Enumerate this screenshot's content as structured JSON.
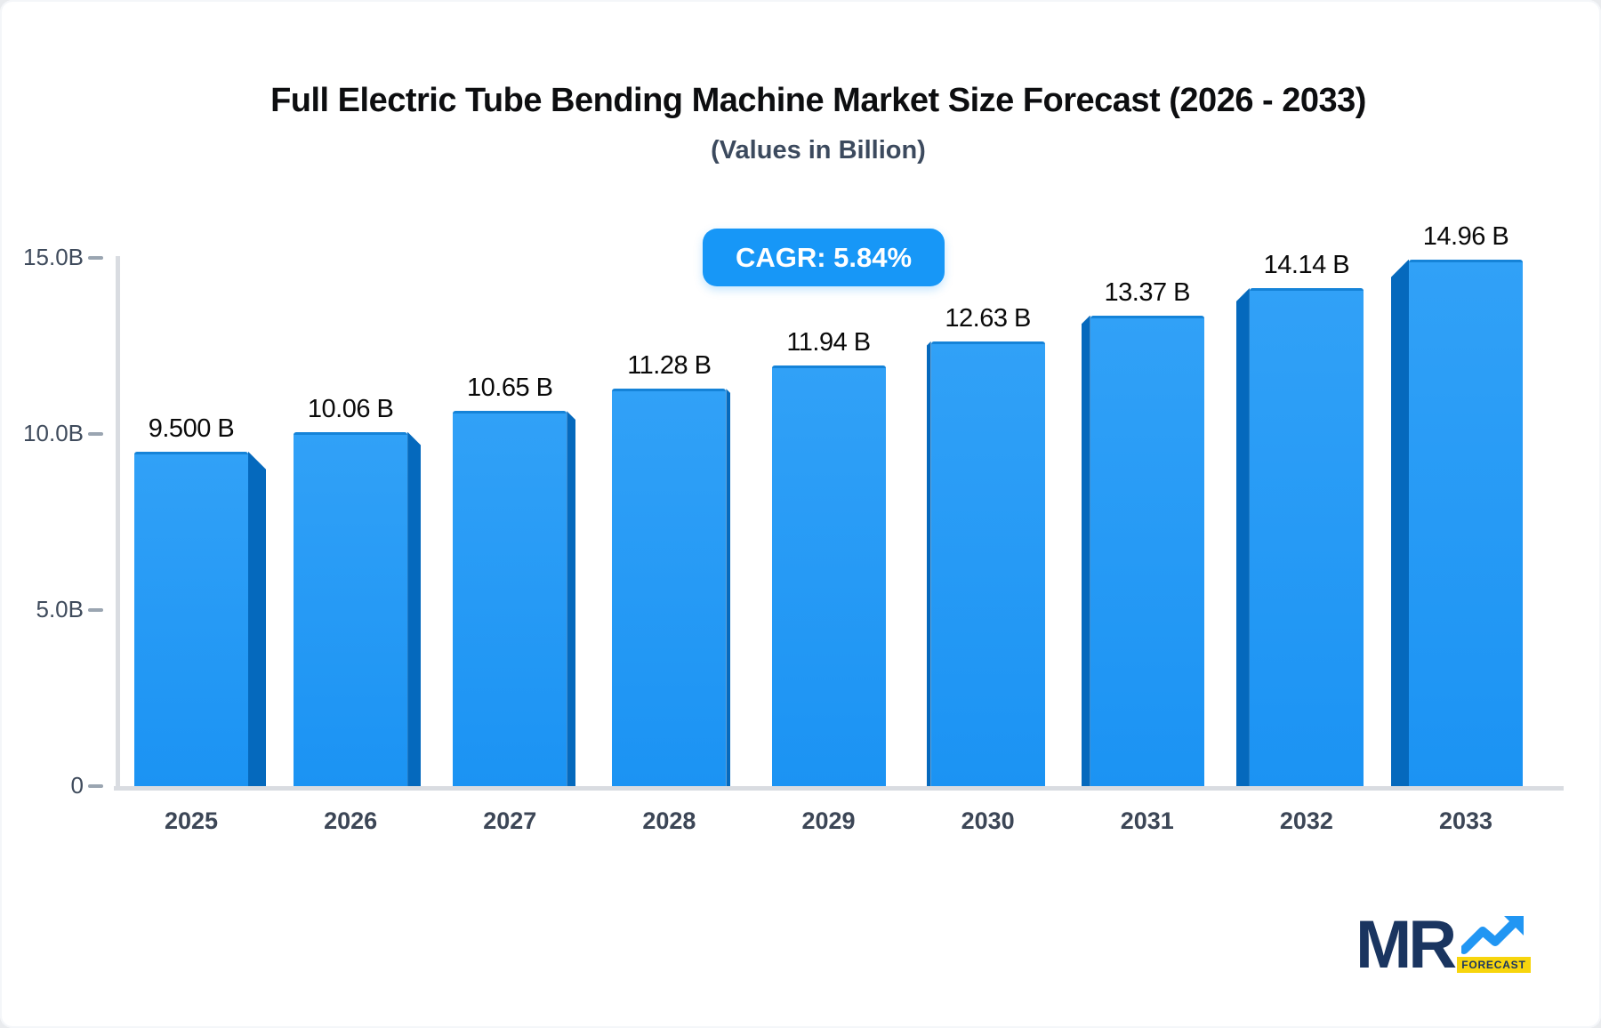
{
  "title": "Full Electric Tube Bending Machine Market Size Forecast (2026 - 2033)",
  "subtitle": "(Values in Billion)",
  "cagr_badge": "CAGR: 5.84%",
  "chart_data": {
    "type": "bar",
    "categories": [
      "2025",
      "2026",
      "2027",
      "2028",
      "2029",
      "2030",
      "2031",
      "2032",
      "2033"
    ],
    "values": [
      9.5,
      10.06,
      10.65,
      11.28,
      11.94,
      12.63,
      13.37,
      14.14,
      14.96
    ],
    "value_labels": [
      "9.500 B",
      "10.06 B",
      "10.65 B",
      "11.28 B",
      "11.94 B",
      "12.63 B",
      "13.37 B",
      "14.14 B",
      "14.96 B"
    ],
    "title": "Full Electric Tube Bending Machine Market Size Forecast (2026 - 2033)",
    "xlabel": "",
    "ylabel": "",
    "ylim": [
      0,
      15
    ],
    "y_ticks": [
      {
        "value": 15,
        "label": "15.0B"
      },
      {
        "value": 10,
        "label": "10.0B"
      },
      {
        "value": 5,
        "label": "5.0B"
      },
      {
        "value": 0,
        "label": "0"
      }
    ],
    "grid": "off",
    "legend": "none",
    "bar_style_3d": true
  },
  "colors": {
    "bar_face_top": "#31a1f7",
    "bar_face_bottom": "#1b93f3",
    "bar_top_edge": "#1583d8",
    "bar_side": "#0569bd",
    "badge_bg": "#1797f7",
    "axis_line": "#d9dce1",
    "tick_dash": "#9aa5b1",
    "axis_text": "#3f4b5c",
    "year_text": "#3c4656",
    "title_text": "#0d0e10",
    "subtitle_text": "#3c4a5e",
    "logo_navy": "#1a3560",
    "logo_blue": "#2196f3",
    "logo_yellow": "#f7d50d"
  },
  "logo": {
    "mr": "MR",
    "forecast": "FORECAST"
  }
}
